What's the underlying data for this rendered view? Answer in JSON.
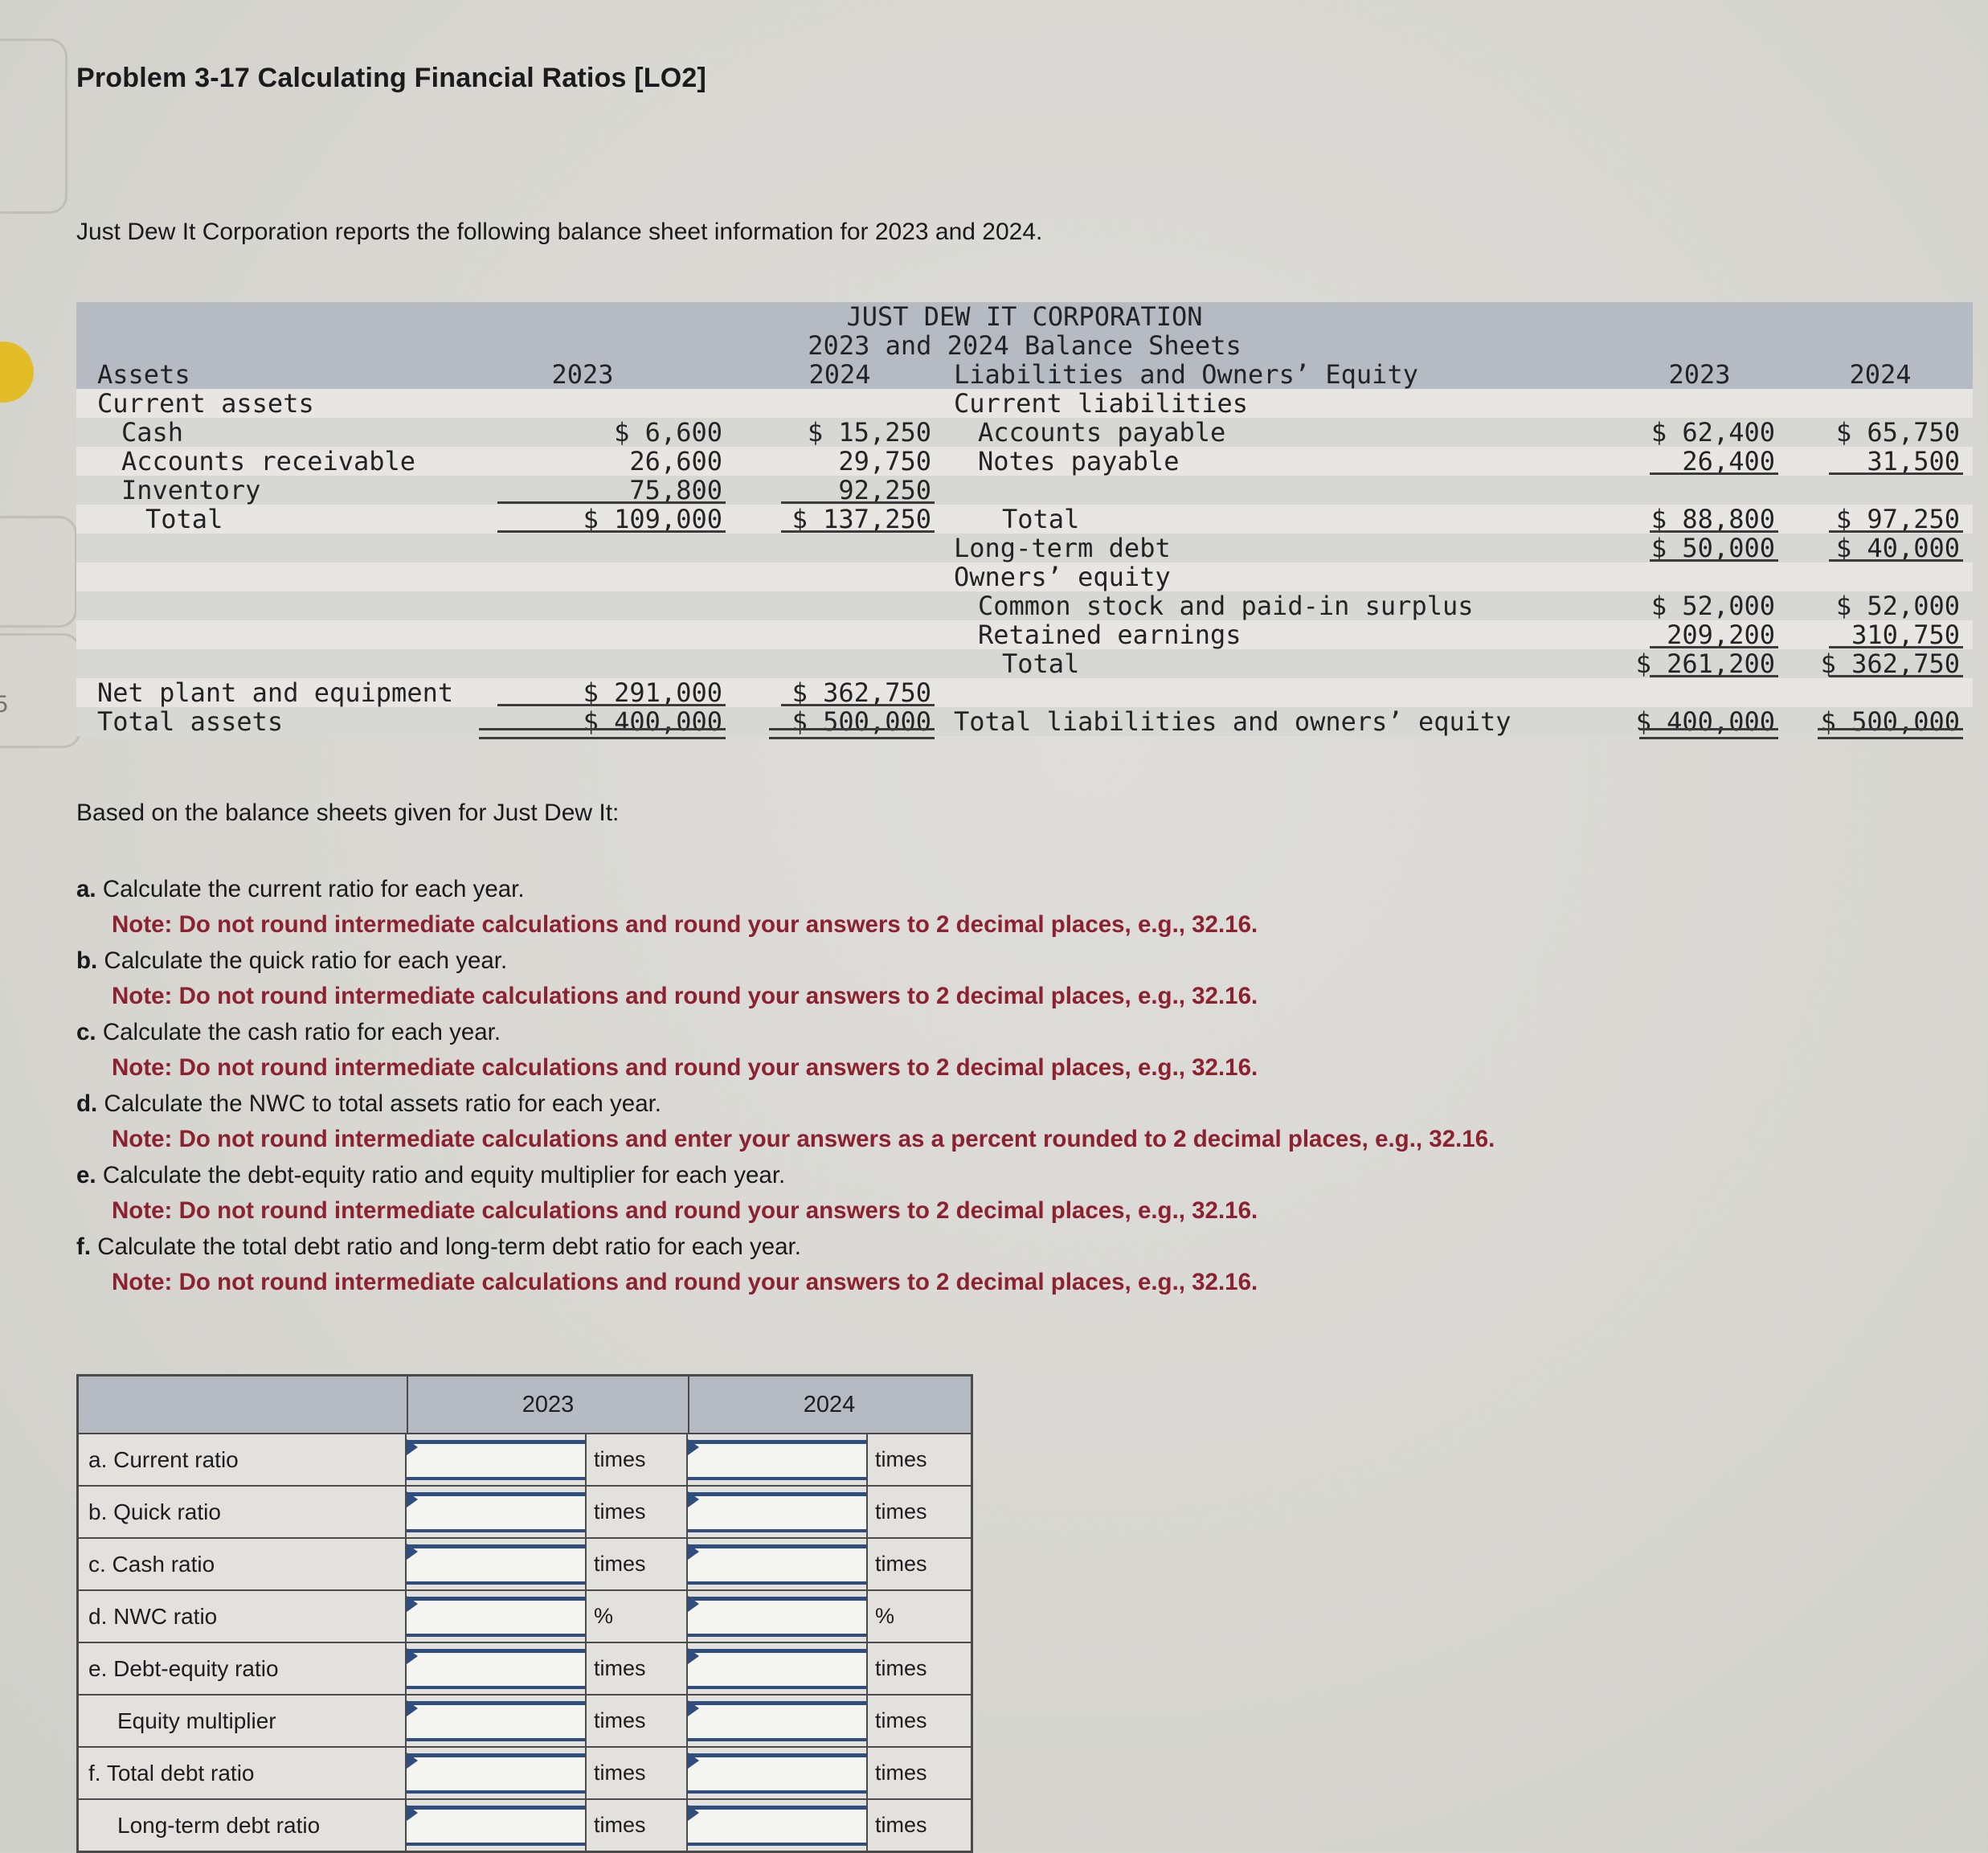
{
  "page": {
    "title": "Problem 3-17 Calculating Financial Ratios [LO2]",
    "intro": "Just Dew It Corporation reports the following balance sheet information for 2023 and 2024.",
    "based_on": "Based on the balance sheets given for Just Dew It:",
    "side_marker": "5"
  },
  "colors": {
    "accent_navy": "#2f4e7d",
    "note_red": "#8c2130",
    "header_band": "#b6bbc3"
  },
  "balance_sheet": {
    "company": "JUST DEW IT CORPORATION",
    "subtitle": "2023 and 2024 Balance Sheets",
    "left_header": "Assets",
    "right_header": "Liabilities and Owners’ Equity",
    "year_2023": "2023",
    "year_2024": "2024",
    "lines": [
      {
        "left": {
          "label": "Current assets"
        },
        "right": {
          "label": "Current liabilities"
        }
      },
      {
        "left": {
          "label": "Cash",
          "y2023": "$ 6,600",
          "y2024": "$ 15,250"
        },
        "right": {
          "label": "Accounts payable",
          "y2023": "$ 62,400",
          "y2024": "$ 65,750"
        }
      },
      {
        "left": {
          "label": "Accounts receivable",
          "y2023": "26,600",
          "y2024": "29,750"
        },
        "right": {
          "label": "Notes payable",
          "y2023": "26,400",
          "y2024": "31,500"
        }
      },
      {
        "left": {
          "label": "Inventory",
          "y2023": "75,800",
          "y2024": "92,250"
        },
        "right": {}
      },
      {
        "left": {
          "label": "Total",
          "y2023": "$ 109,000",
          "y2024": "$ 137,250"
        },
        "right": {
          "label": "Total",
          "y2023": "$ 88,800",
          "y2024": "$ 97,250"
        }
      },
      {
        "left": {},
        "right": {
          "label": "Long-term debt",
          "y2023": "$ 50,000",
          "y2024": "$ 40,000"
        }
      },
      {
        "left": {},
        "right": {
          "label": "Owners’ equity"
        }
      },
      {
        "left": {},
        "right": {
          "label": "Common stock and paid-in surplus",
          "y2023": "$ 52,000",
          "y2024": "$ 52,000"
        }
      },
      {
        "left": {},
        "right": {
          "label": "Retained earnings",
          "y2023": "209,200",
          "y2024": "310,750"
        }
      },
      {
        "left": {},
        "right": {
          "label": "Total",
          "y2023": "$ 261,200",
          "y2024": "$ 362,750"
        }
      },
      {
        "left": {
          "label": "Net plant and equipment",
          "y2023": "$ 291,000",
          "y2024": "$ 362,750"
        },
        "right": {}
      },
      {
        "left": {
          "label": "Total assets",
          "y2023": "$ 400,000",
          "y2024": "$ 500,000"
        },
        "right": {
          "label": "Total liabilities and owners’ equity",
          "y2023": "$ 400,000",
          "y2024": "$ 500,000"
        }
      }
    ]
  },
  "questions": [
    {
      "id": "a.",
      "text": "Calculate the current ratio for each year.",
      "note": "Note: Do not round intermediate calculations and round your answers to 2 decimal places, e.g., 32.16."
    },
    {
      "id": "b.",
      "text": "Calculate the quick ratio for each year.",
      "note": "Note: Do not round intermediate calculations and round your answers to 2 decimal places, e.g., 32.16."
    },
    {
      "id": "c.",
      "text": "Calculate the cash ratio for each year.",
      "note": "Note: Do not round intermediate calculations and round your answers to 2 decimal places, e.g., 32.16."
    },
    {
      "id": "d.",
      "text": "Calculate the NWC to total assets ratio for each year.",
      "note": "Note: Do not round intermediate calculations and enter your answers as a percent rounded to 2 decimal places, e.g., 32.16."
    },
    {
      "id": "e.",
      "text": "Calculate the debt-equity ratio and equity multiplier for each year.",
      "note": "Note: Do not round intermediate calculations and round your answers to 2 decimal places, e.g., 32.16."
    },
    {
      "id": "f.",
      "text": "Calculate the total debt ratio and long-term debt ratio for each year.",
      "note": "Note: Do not round intermediate calculations and round your answers to 2 decimal places, e.g., 32.16."
    }
  ],
  "answer_table": {
    "year_2023": "2023",
    "year_2024": "2024",
    "rows": [
      {
        "label": "a. Current ratio",
        "unit": "times",
        "value_2023": "",
        "value_2024": ""
      },
      {
        "label": "b. Quick ratio",
        "unit": "times",
        "value_2023": "",
        "value_2024": ""
      },
      {
        "label": "c. Cash ratio",
        "unit": "times",
        "value_2023": "",
        "value_2024": ""
      },
      {
        "label": "d. NWC ratio",
        "unit": "%",
        "value_2023": "",
        "value_2024": ""
      },
      {
        "label": "e. Debt-equity ratio",
        "unit": "times",
        "value_2023": "",
        "value_2024": ""
      },
      {
        "label": "Equity multiplier",
        "unit": "times",
        "value_2023": "",
        "value_2024": ""
      },
      {
        "label": "f. Total debt ratio",
        "unit": "times",
        "value_2023": "",
        "value_2024": ""
      },
      {
        "label": "Long-term debt ratio",
        "unit": "times",
        "value_2023": "",
        "value_2024": ""
      }
    ]
  }
}
